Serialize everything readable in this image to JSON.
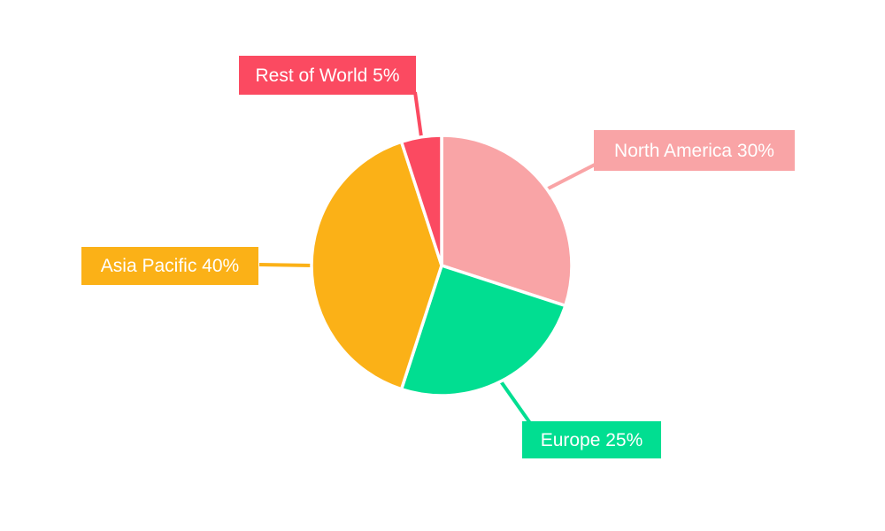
{
  "chart_data": {
    "type": "pie",
    "title": "",
    "order": "clockwise-from-top",
    "background": "#FFFFFF",
    "callout_text_color": "#FFFFFF",
    "slices": [
      {
        "label": "North America",
        "value": 30,
        "color": "#F9A4A6",
        "callout": "North America 30%"
      },
      {
        "label": "Europe",
        "value": 25,
        "color": "#01DE91",
        "callout": "Europe 25%"
      },
      {
        "label": "Asia Pacific",
        "value": 40,
        "color": "#FBB117",
        "callout": "Asia Pacific 40%"
      },
      {
        "label": "Rest of World",
        "value": 5,
        "color": "#FB4A61",
        "callout": "Rest of World 5%"
      }
    ]
  }
}
